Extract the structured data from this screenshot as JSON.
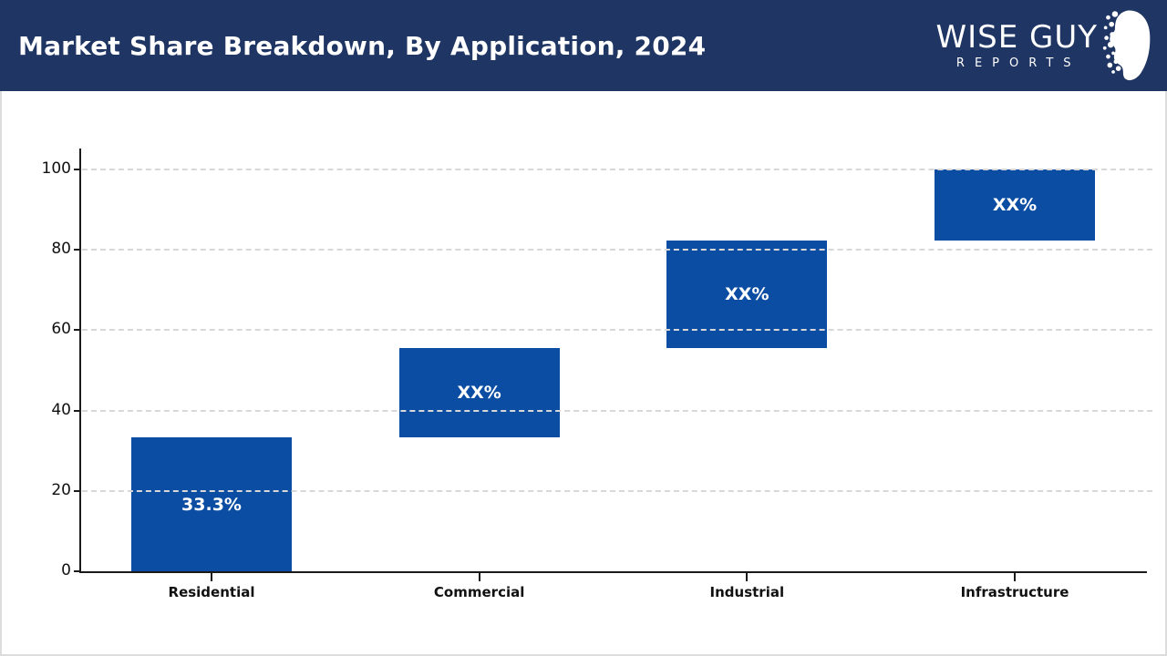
{
  "header": {
    "title": "Market Share Breakdown, By Application, 2024",
    "bg_color": "#1f3563",
    "logo": {
      "line1": "WISE GUY",
      "line2": "REPORTS"
    }
  },
  "watermark": {
    "line1": "WISE GUY",
    "line2": "REPORTS",
    "color": "#f1f1f1"
  },
  "chart_data": {
    "type": "bar",
    "subtype": "waterfall",
    "title": "Market Share Breakdown, By Application, 2024",
    "categories": [
      "Residential",
      "Commercial",
      "Industrial",
      "Infrastructure"
    ],
    "segments": [
      {
        "category": "Residential",
        "start": 0,
        "end": 33.3,
        "label": "33.3%"
      },
      {
        "category": "Commercial",
        "start": 33.3,
        "end": 55.5,
        "label": "XX%"
      },
      {
        "category": "Industrial",
        "start": 55.5,
        "end": 82.2,
        "label": "XX%"
      },
      {
        "category": "Infrastructure",
        "start": 82.2,
        "end": 100,
        "label": "XX%"
      }
    ],
    "y_ticks": [
      0,
      20,
      40,
      60,
      80,
      100
    ],
    "ylim": [
      0,
      100
    ],
    "xlabel": "",
    "ylabel": "",
    "bar_color": "#0b4da2",
    "grid": "horizontal-dashed",
    "gridline_color": "#d8d8d8",
    "legend": "none"
  }
}
